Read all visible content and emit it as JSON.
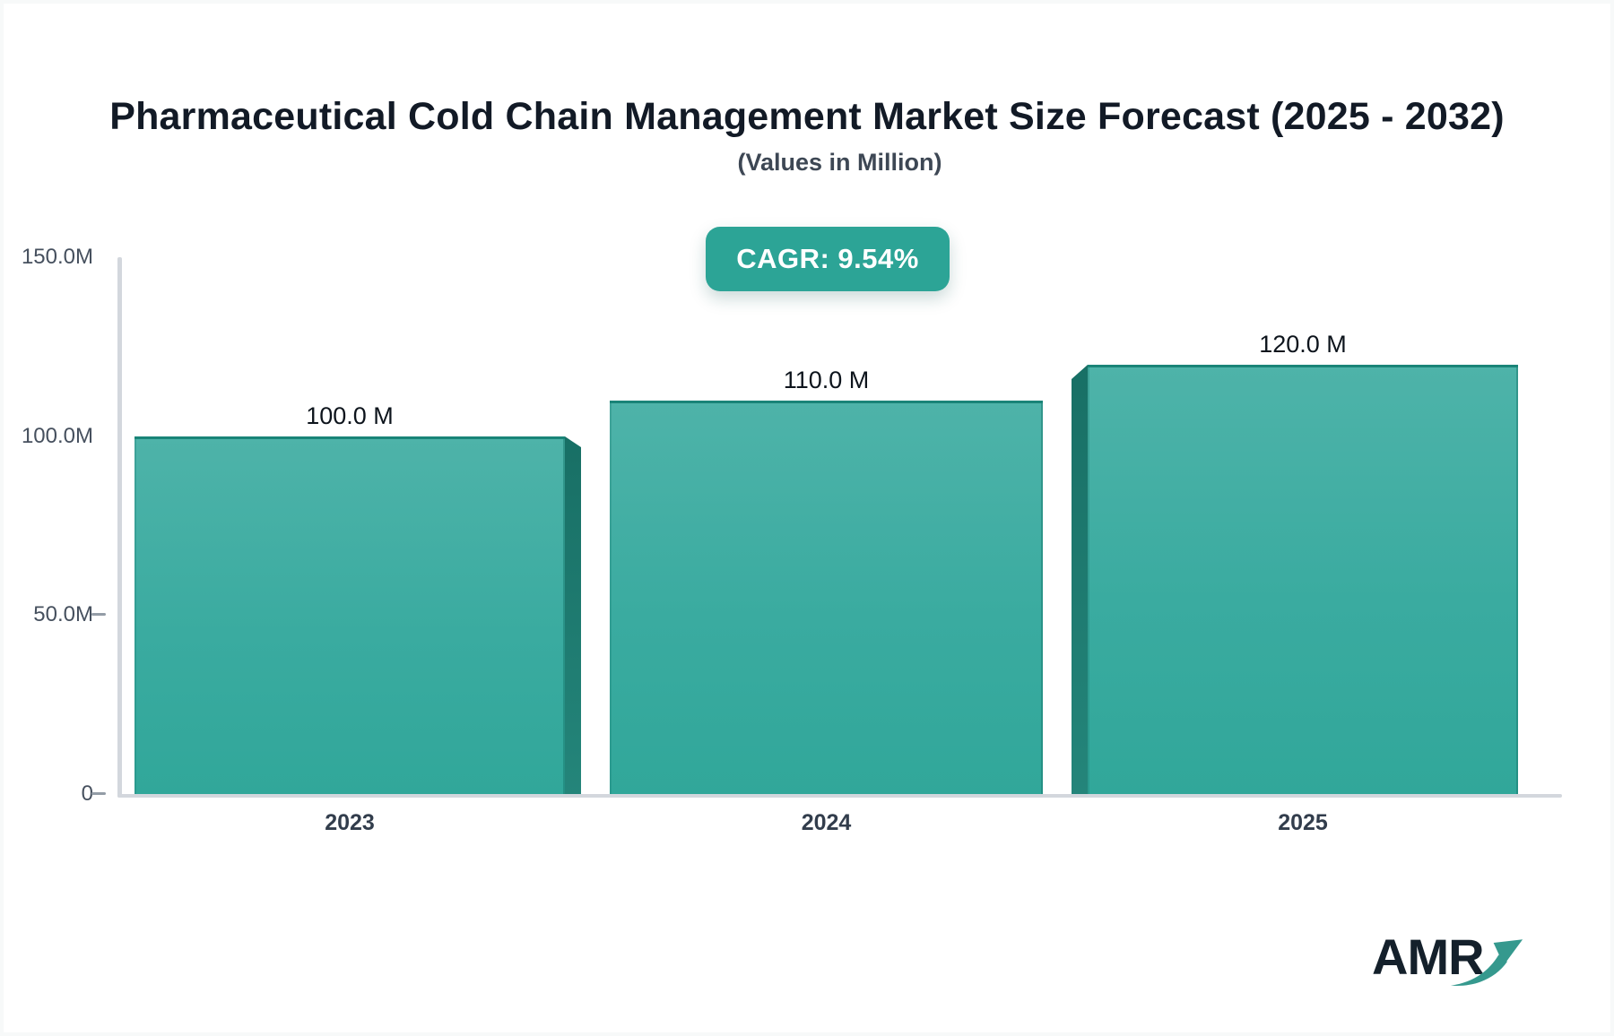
{
  "chart_data": {
    "type": "bar",
    "title": "Pharmaceutical Cold Chain Management Market Size Forecast (2025 - 2032)",
    "subtitle": "(Values in Million)",
    "cagr_label": "CAGR: 9.54%",
    "categories": [
      "2023",
      "2024",
      "2025"
    ],
    "values": [
      100.0,
      110.0,
      120.0
    ],
    "bar_labels": [
      "100.0 M",
      "110.0 M",
      "120.0 M"
    ],
    "unit": "Million",
    "xlabel": "",
    "ylabel": "",
    "ylim": [
      0,
      150
    ],
    "grid": false,
    "legend": false,
    "y_axis_ticks": [
      {
        "label": "0",
        "value": 0,
        "dash": true
      },
      {
        "label": "50.0M",
        "value": 50,
        "dash": true
      },
      {
        "label": "100.0M",
        "value": 100,
        "dash": false
      },
      {
        "label": "150.0M",
        "value": 150,
        "dash": false
      }
    ]
  },
  "colors": {
    "accent_teal": "#2ca496",
    "bar_gradient_top": "#4eb3a9",
    "bar_gradient_bottom": "#31a79a",
    "bar_top_edge": "#1a8478",
    "bar_side_face": "#1e7a6f",
    "axis_line": "#d3d7dd",
    "title_text": "#121a26",
    "subtitle_text": "#3d4754",
    "badge_text": "#ffffff",
    "logo_text": "#14202b",
    "logo_arrow": "#35998e"
  },
  "icons": {
    "logo_arrow": "growth-arrow-icon"
  },
  "logo": {
    "text": "AMR"
  }
}
